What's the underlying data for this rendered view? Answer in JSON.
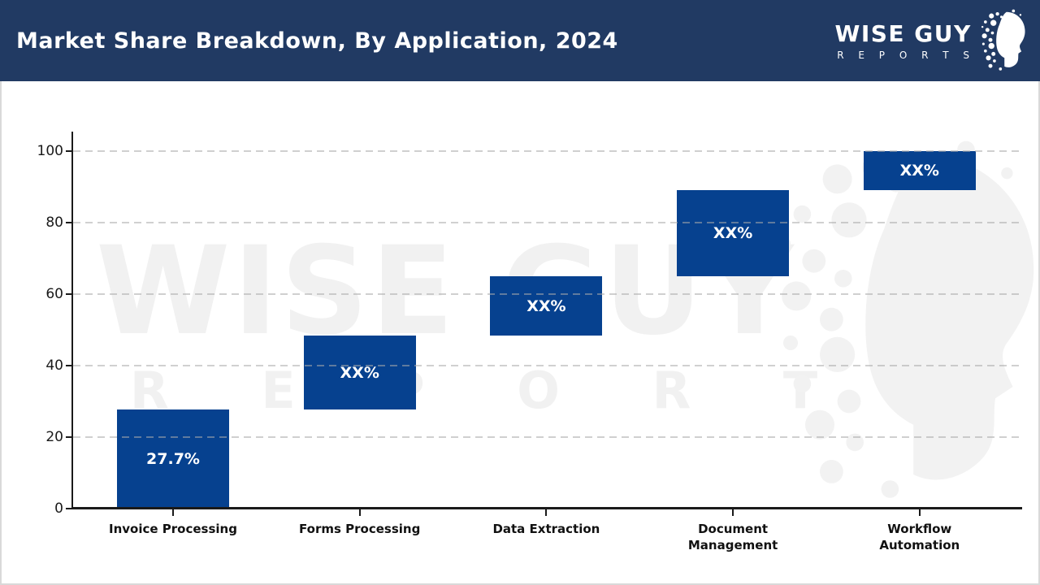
{
  "header": {
    "title": "Market Share Breakdown, By Application, 2024"
  },
  "brand": {
    "name": "WISE GUY",
    "subtitle": "R E P O R T S"
  },
  "watermark": {
    "line1": "WISE GUY",
    "line2": "REPORTS"
  },
  "colors": {
    "header_bg": "#213A63",
    "bar": "#06418F",
    "grid": "#D6D6D6",
    "axis": "#1A1A1A",
    "title_text": "#FFFFFF",
    "bar_label_text": "#FFFFFF",
    "watermark": "#F1F1F1"
  },
  "chart_data": {
    "type": "bar",
    "subtype": "waterfall",
    "title": "Market Share Breakdown, By Application, 2024",
    "categories": [
      "Invoice Processing",
      "Forms Processing",
      "Data Extraction",
      "Document Management",
      "Workflow Automation"
    ],
    "category_lines": [
      [
        "Invoice Processing"
      ],
      [
        "Forms Processing"
      ],
      [
        "Data Extraction"
      ],
      [
        "Document",
        "Management"
      ],
      [
        "Workflow",
        "Automation"
      ]
    ],
    "series": [
      {
        "name": "Market Share (%)",
        "segments": [
          {
            "category": "Invoice Processing",
            "start": 0,
            "end": 27.7,
            "label": "27.7%"
          },
          {
            "category": "Forms Processing",
            "start": 27.7,
            "end": 48.4,
            "label": "XX%"
          },
          {
            "category": "Data Extraction",
            "start": 48.4,
            "end": 65,
            "label": "XX%"
          },
          {
            "category": "Document Management",
            "start": 65,
            "end": 89,
            "label": "XX%"
          },
          {
            "category": "Workflow Automation",
            "start": 89,
            "end": 100,
            "label": "XX%"
          }
        ]
      }
    ],
    "ylim": [
      0,
      100
    ],
    "yticks": [
      0,
      20,
      40,
      60,
      80,
      100
    ],
    "xlabel": "",
    "ylabel": "",
    "grid": "horizontal-dashed",
    "legend": "none"
  }
}
